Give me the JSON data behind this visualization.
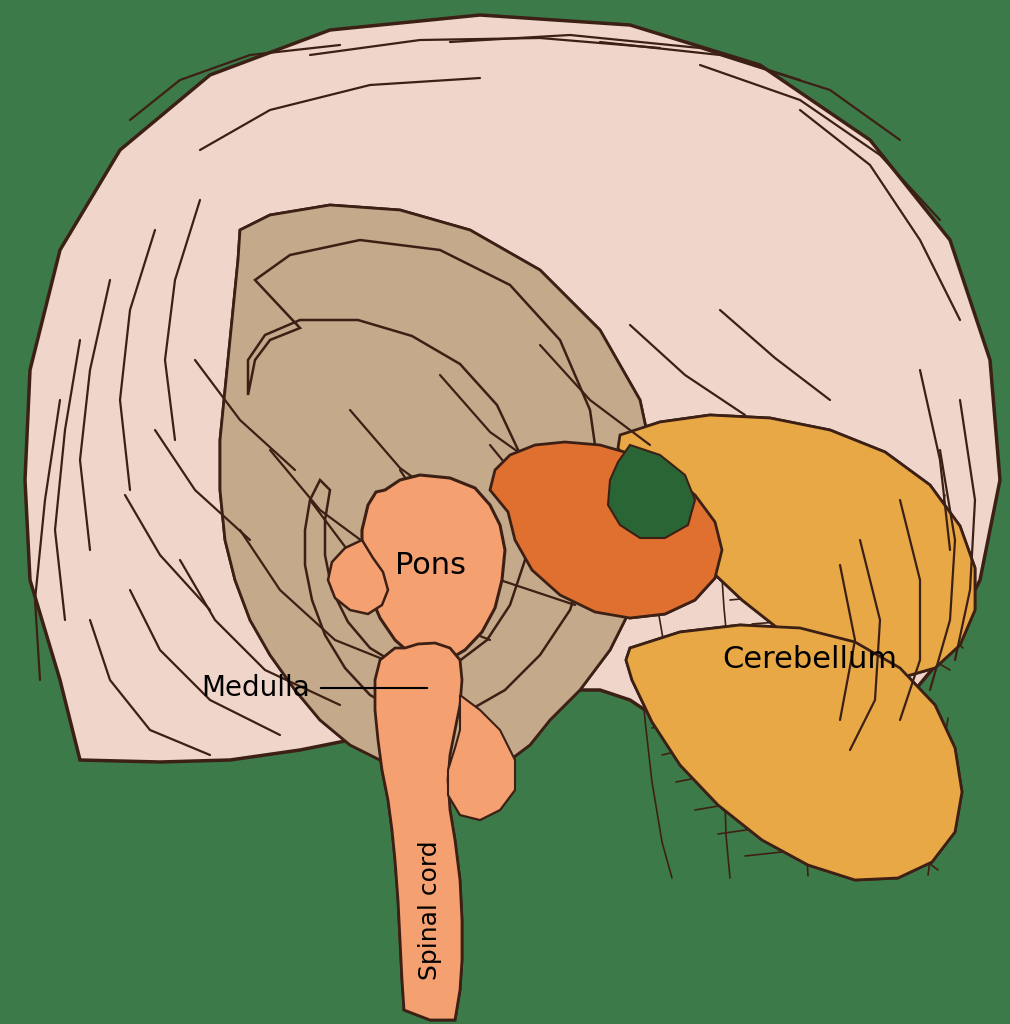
{
  "background_color": "#3d7a4a",
  "cerebrum_fill": "#f0d5ca",
  "cerebrum_stroke": "#3d2015",
  "inner_fill": "#c4a98a",
  "brainstem_fill": "#f5a070",
  "cerebellum_fill": "#e8a845",
  "midbrain_fill": "#e07030",
  "tectum_fill": "#2a6535",
  "label_pons": "Pons",
  "label_medulla": "Medulla",
  "label_cerebellum": "Cerebellum",
  "label_spinal_cord": "Spinal cord",
  "label_color": "#000000",
  "figsize": [
    10.1,
    10.24
  ],
  "dpi": 100
}
